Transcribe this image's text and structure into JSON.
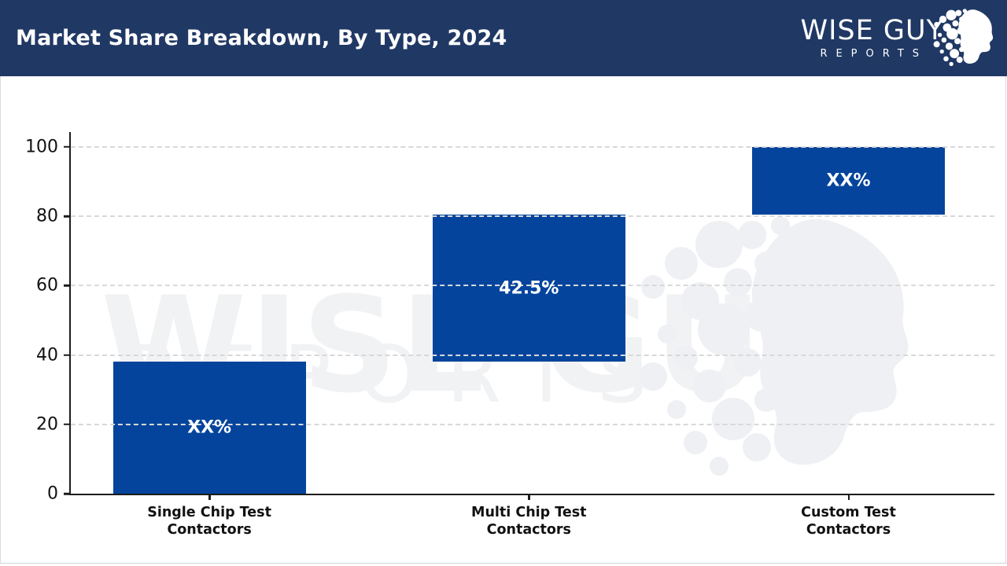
{
  "header": {
    "title": "Market Share Breakdown, By Type, 2024",
    "logo": {
      "line1": "WISE GUY",
      "line2": "REPORTS"
    }
  },
  "watermark": {
    "line1": "WISE GUY",
    "line2": "REPORTS"
  },
  "chart_data": {
    "type": "bar",
    "subtype": "waterfall-floating-bars",
    "title": "Market Share Breakdown, By Type, 2024",
    "categories": [
      "Single Chip Test Contactors",
      "Multi Chip Test Contactors",
      "Custom Test Contactors"
    ],
    "bars": [
      {
        "from": 0,
        "to": 38,
        "label": "XX%"
      },
      {
        "from": 38,
        "to": 80.5,
        "label": "42.5%"
      },
      {
        "from": 80.5,
        "to": 100,
        "label": "XX%"
      }
    ],
    "yticks": [
      0,
      20,
      40,
      60,
      80,
      100
    ],
    "ylim": [
      0,
      104.3
    ],
    "grid": "dashed-horizontal",
    "legend": "none"
  },
  "colors": {
    "header_bg": "#203864",
    "bar": "#04449c",
    "grid": "#d8d8d8",
    "axis": "#1c1c1c",
    "watermark": "#f1f2f4",
    "title_text": "#ffffff",
    "label_text": "#111111"
  }
}
